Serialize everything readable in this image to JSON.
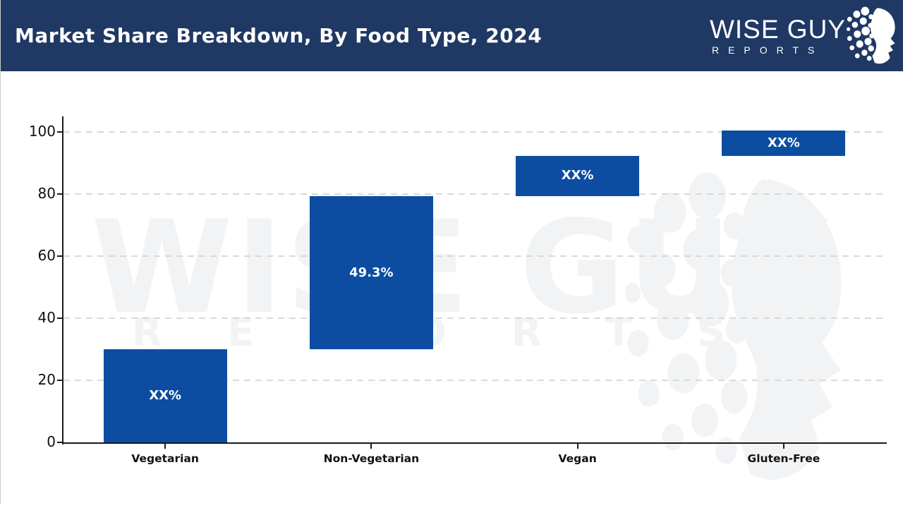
{
  "header": {
    "title": "Market Share Breakdown, By Food Type, 2024",
    "logo": {
      "line1": "WISE GUY",
      "line2": "REPORTS"
    }
  },
  "watermark": {
    "line1": "WISE GUY",
    "line2": "REPORTS"
  },
  "colors": {
    "header_bg": "#1F3864",
    "bar": "#0C4DA2",
    "grid": "#D9D9D9",
    "axis": "#1A1A1A",
    "title_text": "#FFFFFF",
    "bar_label": "#FFFFFF",
    "tick_text": "#111111",
    "watermark": "#F2F3F5"
  },
  "chart_data": {
    "type": "bar",
    "subtype": "floating-waterfall",
    "title": "Market Share Breakdown, By Food Type, 2024",
    "categories": [
      "Vegetarian",
      "Non-Vegetarian",
      "Vegan",
      "Gluten-Free"
    ],
    "segments": [
      {
        "category": "Vegetarian",
        "start": 0,
        "end": 30,
        "height": 30,
        "label": "XX%"
      },
      {
        "category": "Non-Vegetarian",
        "start": 30,
        "end": 79.3,
        "height": 49.3,
        "label": "49.3%"
      },
      {
        "category": "Vegan",
        "start": 79.3,
        "end": 92.3,
        "height": 13,
        "label": "XX%"
      },
      {
        "category": "Gluten-Free",
        "start": 92.3,
        "end": 100.4,
        "height": 8.1,
        "label": "XX%"
      }
    ],
    "xlabel": "",
    "ylabel": "",
    "yticks": [
      0,
      20,
      40,
      60,
      80,
      100
    ],
    "ylim": [
      0,
      105
    ],
    "grid": "horizontal-dashed",
    "legend": null,
    "bar_color": "#0C4DA2"
  }
}
